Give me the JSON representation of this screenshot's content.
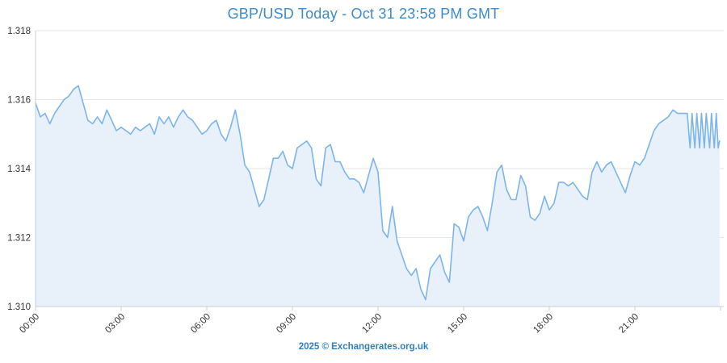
{
  "page": {
    "title": "GBP/USD Today - Oct 31 23:58 PM GMT"
  },
  "footer": {
    "credit": "2025 © Exchangerates.org.uk"
  },
  "colors": {
    "title": "#3e8ccd",
    "footer": "#2e80c6",
    "line": "#7cb5ec",
    "fill": "#e8f1fa",
    "grid": "#e6e6e6",
    "axis": "#c9cfd6",
    "label": "#333333"
  },
  "chart_data": {
    "type": "area",
    "title": "GBP/USD Today - Oct 31 23:58 PM GMT",
    "series_name": "GBP/USD",
    "x_unit": "minutes_since_midnight",
    "x_max": 1440,
    "y_min": 1.31,
    "y_max": 1.318,
    "ylim": [
      1.31,
      1.318
    ],
    "grid": "horizontal",
    "legend": "none",
    "y_ticks": [
      1.318,
      1.316,
      1.314,
      1.312,
      1.31
    ],
    "x_ticks": [
      {
        "m": 0,
        "label": "00:00"
      },
      {
        "m": 180,
        "label": "03:00"
      },
      {
        "m": 360,
        "label": "06:00"
      },
      {
        "m": 540,
        "label": "09:00"
      },
      {
        "m": 720,
        "label": "12:00"
      },
      {
        "m": 900,
        "label": "15:00"
      },
      {
        "m": 1080,
        "label": "18:00"
      },
      {
        "m": 1260,
        "label": "21:00"
      },
      {
        "m": 1440,
        "label": ""
      }
    ],
    "points": [
      [
        0,
        1.3159
      ],
      [
        10,
        1.3155
      ],
      [
        20,
        1.3156
      ],
      [
        30,
        1.3153
      ],
      [
        40,
        1.3156
      ],
      [
        50,
        1.3158
      ],
      [
        60,
        1.316
      ],
      [
        70,
        1.3161
      ],
      [
        80,
        1.3163
      ],
      [
        90,
        1.3164
      ],
      [
        100,
        1.3159
      ],
      [
        110,
        1.3154
      ],
      [
        120,
        1.3153
      ],
      [
        130,
        1.3155
      ],
      [
        140,
        1.3153
      ],
      [
        150,
        1.3157
      ],
      [
        160,
        1.3154
      ],
      [
        170,
        1.3151
      ],
      [
        180,
        1.3152
      ],
      [
        190,
        1.3151
      ],
      [
        200,
        1.315
      ],
      [
        210,
        1.3152
      ],
      [
        220,
        1.3151
      ],
      [
        230,
        1.3152
      ],
      [
        240,
        1.3153
      ],
      [
        250,
        1.315
      ],
      [
        260,
        1.3155
      ],
      [
        270,
        1.3153
      ],
      [
        280,
        1.3155
      ],
      [
        290,
        1.3152
      ],
      [
        300,
        1.3155
      ],
      [
        310,
        1.3157
      ],
      [
        320,
        1.3155
      ],
      [
        330,
        1.3154
      ],
      [
        340,
        1.3152
      ],
      [
        350,
        1.315
      ],
      [
        360,
        1.3151
      ],
      [
        370,
        1.3153
      ],
      [
        380,
        1.3154
      ],
      [
        390,
        1.315
      ],
      [
        400,
        1.3148
      ],
      [
        410,
        1.3152
      ],
      [
        420,
        1.3157
      ],
      [
        430,
        1.315
      ],
      [
        440,
        1.3141
      ],
      [
        450,
        1.3139
      ],
      [
        460,
        1.3134
      ],
      [
        470,
        1.3129
      ],
      [
        480,
        1.3131
      ],
      [
        490,
        1.3137
      ],
      [
        500,
        1.3143
      ],
      [
        510,
        1.3143
      ],
      [
        520,
        1.3145
      ],
      [
        530,
        1.3141
      ],
      [
        540,
        1.314
      ],
      [
        550,
        1.3146
      ],
      [
        560,
        1.3147
      ],
      [
        570,
        1.3148
      ],
      [
        580,
        1.3146
      ],
      [
        590,
        1.3137
      ],
      [
        600,
        1.3135
      ],
      [
        610,
        1.3146
      ],
      [
        620,
        1.3147
      ],
      [
        630,
        1.3142
      ],
      [
        640,
        1.3142
      ],
      [
        650,
        1.3139
      ],
      [
        660,
        1.3137
      ],
      [
        670,
        1.3137
      ],
      [
        680,
        1.3136
      ],
      [
        690,
        1.3133
      ],
      [
        700,
        1.3138
      ],
      [
        710,
        1.3143
      ],
      [
        720,
        1.3139
      ],
      [
        730,
        1.3122
      ],
      [
        740,
        1.312
      ],
      [
        750,
        1.3129
      ],
      [
        760,
        1.3119
      ],
      [
        770,
        1.3115
      ],
      [
        780,
        1.3111
      ],
      [
        790,
        1.3109
      ],
      [
        800,
        1.3111
      ],
      [
        810,
        1.3105
      ],
      [
        820,
        1.3102
      ],
      [
        830,
        1.3111
      ],
      [
        840,
        1.3113
      ],
      [
        850,
        1.3115
      ],
      [
        860,
        1.311
      ],
      [
        870,
        1.3107
      ],
      [
        880,
        1.3124
      ],
      [
        890,
        1.3123
      ],
      [
        900,
        1.3119
      ],
      [
        910,
        1.3126
      ],
      [
        920,
        1.3128
      ],
      [
        930,
        1.3129
      ],
      [
        940,
        1.3126
      ],
      [
        950,
        1.3122
      ],
      [
        960,
        1.313
      ],
      [
        970,
        1.3139
      ],
      [
        980,
        1.3141
      ],
      [
        990,
        1.3134
      ],
      [
        1000,
        1.3131
      ],
      [
        1010,
        1.3131
      ],
      [
        1020,
        1.3138
      ],
      [
        1030,
        1.3135
      ],
      [
        1040,
        1.3126
      ],
      [
        1050,
        1.3125
      ],
      [
        1060,
        1.3127
      ],
      [
        1070,
        1.3132
      ],
      [
        1080,
        1.3128
      ],
      [
        1090,
        1.313
      ],
      [
        1100,
        1.3136
      ],
      [
        1110,
        1.3136
      ],
      [
        1120,
        1.3135
      ],
      [
        1130,
        1.3136
      ],
      [
        1140,
        1.3134
      ],
      [
        1150,
        1.3132
      ],
      [
        1160,
        1.3131
      ],
      [
        1170,
        1.3139
      ],
      [
        1180,
        1.3142
      ],
      [
        1190,
        1.3139
      ],
      [
        1200,
        1.3141
      ],
      [
        1210,
        1.3142
      ],
      [
        1220,
        1.3139
      ],
      [
        1230,
        1.3136
      ],
      [
        1240,
        1.3133
      ],
      [
        1250,
        1.3138
      ],
      [
        1260,
        1.3142
      ],
      [
        1270,
        1.3141
      ],
      [
        1280,
        1.3143
      ],
      [
        1290,
        1.3147
      ],
      [
        1300,
        1.3151
      ],
      [
        1310,
        1.3153
      ],
      [
        1320,
        1.3154
      ],
      [
        1330,
        1.3155
      ],
      [
        1340,
        1.3157
      ],
      [
        1350,
        1.3156
      ],
      [
        1360,
        1.3156
      ],
      [
        1370,
        1.3156
      ],
      [
        1376,
        1.3146
      ],
      [
        1380,
        1.3156
      ],
      [
        1386,
        1.3146
      ],
      [
        1390,
        1.3156
      ],
      [
        1396,
        1.3146
      ],
      [
        1400,
        1.3156
      ],
      [
        1406,
        1.3146
      ],
      [
        1410,
        1.3156
      ],
      [
        1417,
        1.3146
      ],
      [
        1421,
        1.3156
      ],
      [
        1427,
        1.3146
      ],
      [
        1431,
        1.3156
      ],
      [
        1435,
        1.3146
      ],
      [
        1438,
        1.3148
      ]
    ]
  }
}
